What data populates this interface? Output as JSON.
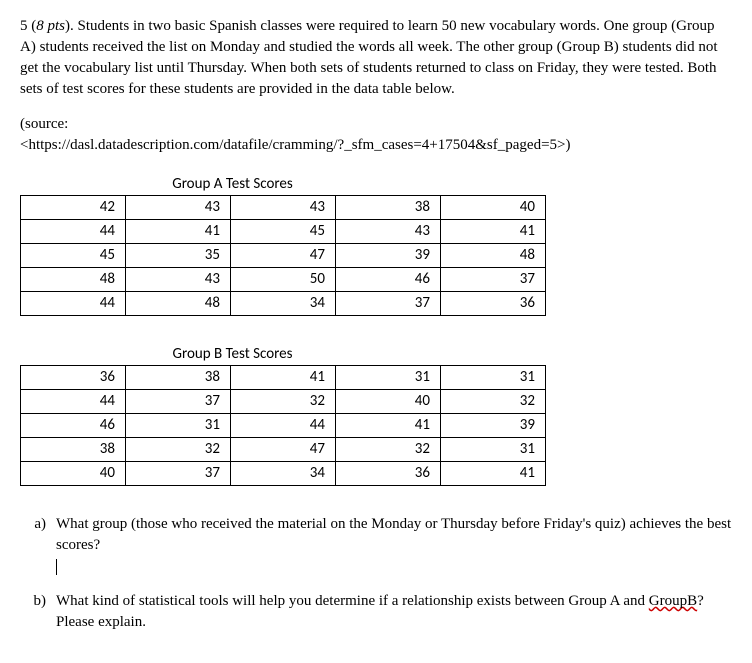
{
  "problem": {
    "number": "5",
    "points": "8 pts",
    "text": "Students in two basic Spanish classes were required to learn 50 new vocabulary words. One group (Group A) students received the list on Monday and studied the words all week. The other group (Group B) students did not get the vocabulary list until Thursday. When both sets of students returned to class on Friday, they were tested. Both sets of test scores for these students are provided in the data table below."
  },
  "source": {
    "label": "(source:",
    "url": "<https://dasl.datadescription.com/datafile/cramming/?_sfm_cases=4+17504&sf_paged=5>)"
  },
  "tableA": {
    "title": "Group A Test Scores",
    "rows": [
      [
        "42",
        "43",
        "43",
        "38",
        "40"
      ],
      [
        "44",
        "41",
        "45",
        "43",
        "41"
      ],
      [
        "45",
        "35",
        "47",
        "39",
        "48"
      ],
      [
        "48",
        "43",
        "50",
        "46",
        "37"
      ],
      [
        "44",
        "48",
        "34",
        "37",
        "36"
      ]
    ]
  },
  "tableB": {
    "title": "Group B Test Scores",
    "rows": [
      [
        "36",
        "38",
        "41",
        "31",
        "31"
      ],
      [
        "44",
        "37",
        "32",
        "40",
        "32"
      ],
      [
        "46",
        "31",
        "44",
        "41",
        "39"
      ],
      [
        "38",
        "32",
        "47",
        "32",
        "31"
      ],
      [
        "40",
        "37",
        "34",
        "36",
        "41"
      ]
    ]
  },
  "questions": {
    "a": {
      "letter": "a)",
      "text": "What group (those who received the material on the Monday or Thursday before Friday's quiz) achieves the best scores?"
    },
    "b": {
      "letter": "b)",
      "text_pre": "What kind of statistical tools will help you determine if a relationship exists between Group A and ",
      "wavy": "GroupB",
      "text_post": "? Please explain."
    }
  }
}
